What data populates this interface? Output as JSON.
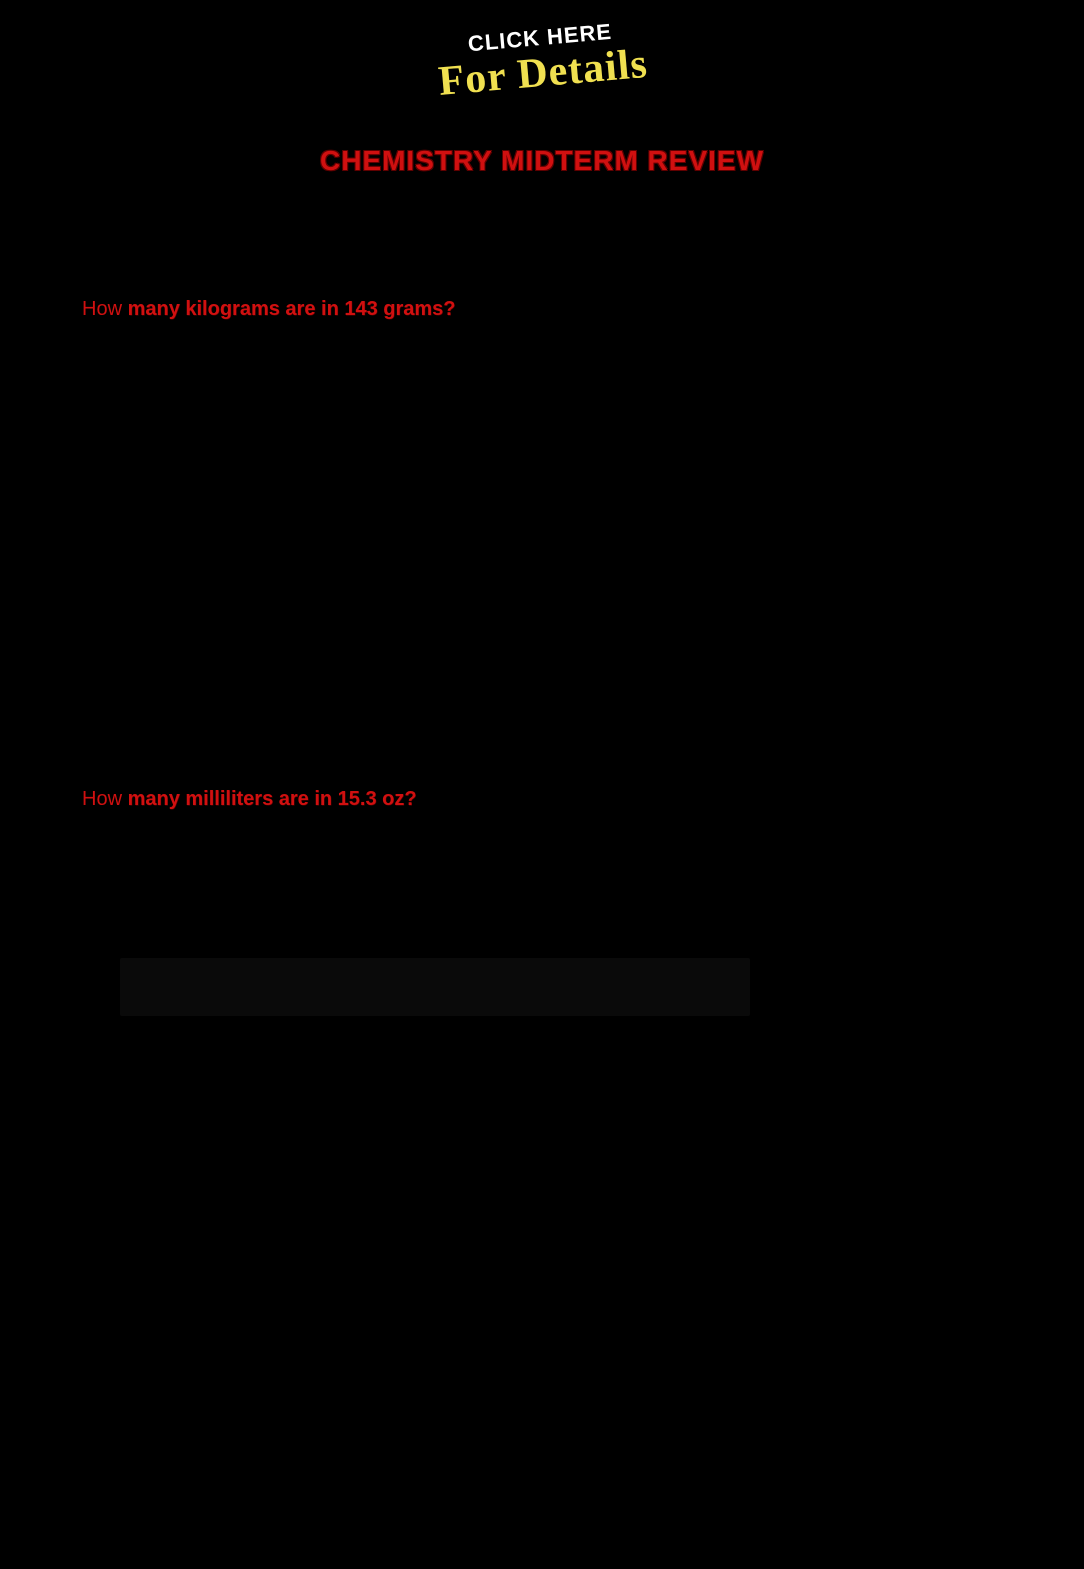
{
  "banner": {
    "line1": "CLICK HERE",
    "line2": "For Details"
  },
  "title": "CHEMISTRY MIDTERM REVIEW",
  "questions": {
    "q1": {
      "prefix": "How ",
      "text": "many kilograms are in 143 grams?"
    },
    "q2": {
      "prefix": "How ",
      "text": "many milliliters are in 15.3 oz?"
    }
  },
  "colors": {
    "background": "#000000",
    "title_color": "#d01010",
    "banner_white": "#ffffff",
    "banner_yellow": "#f0e050",
    "question_color": "#d01010"
  }
}
